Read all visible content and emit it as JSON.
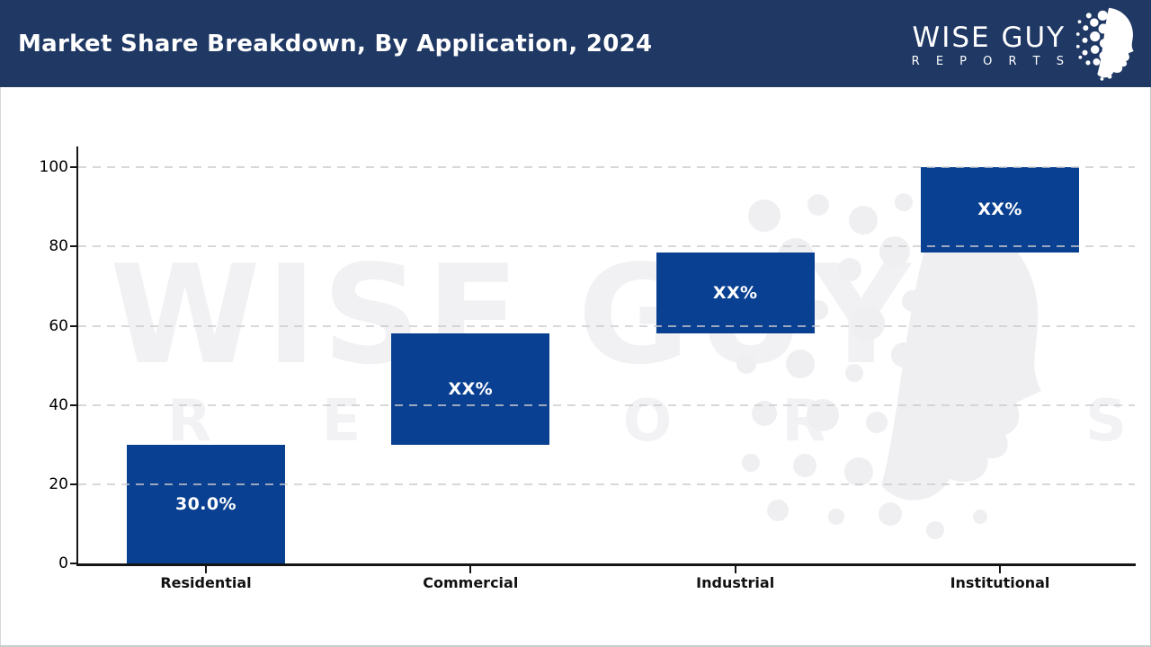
{
  "header": {
    "title": "Market Share Breakdown, By Application, 2024",
    "bg_color": "#1f3864",
    "logo": {
      "line1": "WISE GUY",
      "line2": "R E P O R T S"
    }
  },
  "watermark": {
    "line1": "WISE GUY",
    "line2": "R E P O R T S"
  },
  "chart_data": {
    "type": "bar",
    "subtype": "waterfall",
    "title": "Market Share Breakdown, By Application, 2024",
    "categories": [
      "Residential",
      "Commercial",
      "Industrial",
      "Institutional"
    ],
    "segments": [
      {
        "category": "Residential",
        "start": 0,
        "end": 30,
        "label": "30.0%"
      },
      {
        "category": "Commercial",
        "start": 30,
        "end": 58,
        "label": "XX%"
      },
      {
        "category": "Industrial",
        "start": 58,
        "end": 78.5,
        "label": "XX%"
      },
      {
        "category": "Institutional",
        "start": 78.5,
        "end": 100,
        "label": "XX%"
      }
    ],
    "ylim": [
      0,
      100
    ],
    "yticks": [
      0,
      20,
      40,
      60,
      80,
      100
    ],
    "grid": "horizontal-dashed",
    "legend": "none",
    "bar_color": "#0a4091",
    "bar_label_color": "#ffffff",
    "axis_color": "#151515",
    "gridline_color": "#d9d9d9"
  }
}
